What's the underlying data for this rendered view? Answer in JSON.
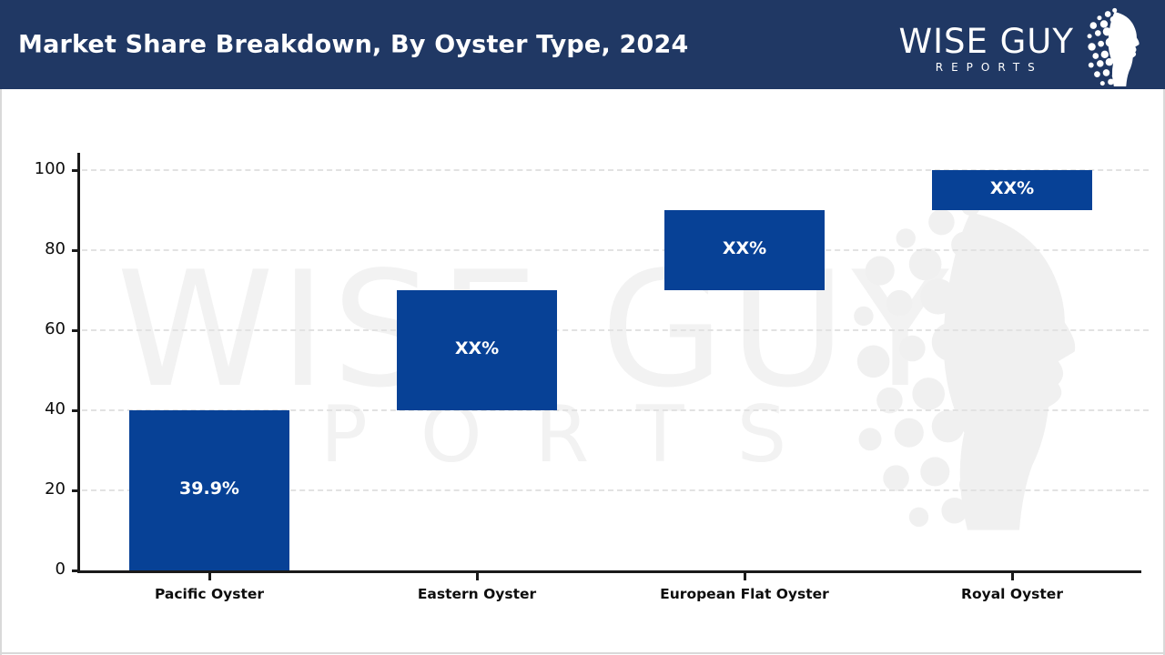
{
  "header": {
    "title": "Market Share Breakdown, By Oyster Type, 2024",
    "bg_color": "#203864",
    "logo": {
      "line1": "WISE GUY",
      "line2": "REPORTS"
    }
  },
  "watermark": {
    "line1": "WISE GUY",
    "line2": "PORTS"
  },
  "chart_data": {
    "type": "bar",
    "subtype": "waterfall",
    "title": "Market Share Breakdown, By Oyster Type, 2024",
    "categories": [
      "Pacific Oyster",
      "Eastern Oyster",
      "European Flat Oyster",
      "Royal Oyster"
    ],
    "segments": [
      {
        "category": "Pacific Oyster",
        "start": 0,
        "end": 39.9,
        "label": "39.9%"
      },
      {
        "category": "Eastern Oyster",
        "start": 40,
        "end": 70,
        "label": "XX%"
      },
      {
        "category": "European Flat Oyster",
        "start": 70,
        "end": 90,
        "label": "XX%"
      },
      {
        "category": "Royal Oyster",
        "start": 90,
        "end": 100,
        "label": "XX%"
      }
    ],
    "y_ticks": [
      0,
      20,
      40,
      60,
      80,
      100
    ],
    "ylim": [
      0,
      100
    ],
    "bar_color": "#074196",
    "value_label_color": "#ffffff",
    "grid": "horizontal dashed",
    "legend": "none"
  }
}
